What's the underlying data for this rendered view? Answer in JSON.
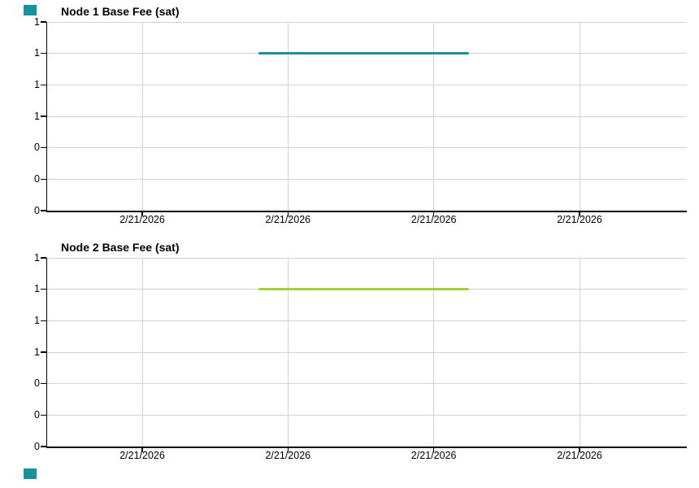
{
  "canvas": {
    "background": "#ffffff",
    "grid_color": "#d3d3d3",
    "axis_color": "#000000",
    "text_color": "#000000"
  },
  "corner_markers": {
    "color": "#17919B",
    "items": [
      {
        "position": "top-left"
      },
      {
        "position": "bottom-left"
      }
    ]
  },
  "charts": [
    {
      "title": "Node 1 Base Fee (sat)",
      "line_color": "#17919B",
      "y_tick_labels": [
        "1",
        "1",
        "1",
        "1",
        "0",
        "0",
        "0"
      ],
      "x_tick_labels": [
        "2/21/2026",
        "2/21/2026",
        "2/21/2026",
        "2/21/2026"
      ]
    },
    {
      "title": "Node 2 Base Fee (sat)",
      "line_color": "#A0D03C",
      "y_tick_labels": [
        "1",
        "1",
        "1",
        "1",
        "0",
        "0",
        "0"
      ],
      "x_tick_labels": [
        "2/21/2026",
        "2/21/2026",
        "2/21/2026",
        "2/21/2026"
      ]
    }
  ],
  "chart_data": [
    {
      "type": "line",
      "title": "Node 1 Base Fee (sat)",
      "xlabel": "",
      "ylabel": "",
      "x_tick_labels": [
        "2/21/2026",
        "2/21/2026",
        "2/21/2026",
        "2/21/2026"
      ],
      "y_tick_labels_displayed": [
        "1",
        "1",
        "1",
        "1",
        "0",
        "0",
        "0"
      ],
      "ylim_displayed": [
        "0",
        "1"
      ],
      "grid": true,
      "legend": false,
      "series": [
        {
          "name": "Node 1 Base Fee (sat)",
          "color": "#17919B",
          "constant_value": 1,
          "value_tick_index_from_top": 1,
          "x_span_fraction_of_plot": [
            0.33,
            0.659
          ],
          "x_date": "2/21/2026"
        }
      ]
    },
    {
      "type": "line",
      "title": "Node 2 Base Fee (sat)",
      "xlabel": "",
      "ylabel": "",
      "x_tick_labels": [
        "2/21/2026",
        "2/21/2026",
        "2/21/2026",
        "2/21/2026"
      ],
      "y_tick_labels_displayed": [
        "1",
        "1",
        "1",
        "1",
        "0",
        "0",
        "0"
      ],
      "ylim_displayed": [
        "0",
        "1"
      ],
      "grid": true,
      "legend": false,
      "series": [
        {
          "name": "Node 2 Base Fee (sat)",
          "color": "#A0D03C",
          "constant_value": 1,
          "value_tick_index_from_top": 1,
          "x_span_fraction_of_plot": [
            0.33,
            0.659
          ],
          "x_date": "2/21/2026"
        }
      ]
    }
  ]
}
